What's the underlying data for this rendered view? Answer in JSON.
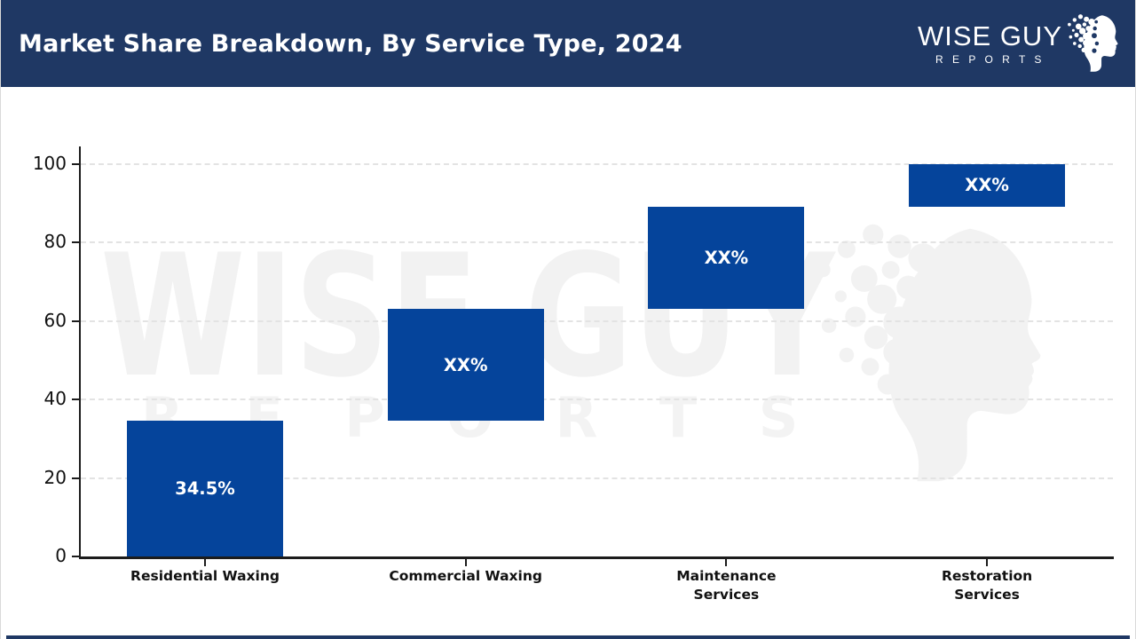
{
  "header": {
    "title": "Market Share Breakdown, By Service Type, 2024",
    "bg_color": "#1F3864",
    "logo": {
      "name": "WISE GUY",
      "tagline": "R E P O R T S"
    }
  },
  "watermark": {
    "name": "WISE GUY",
    "tagline": "R E P O R T S"
  },
  "chart_data": {
    "type": "bar",
    "variant": "waterfall",
    "title": "Market Share Breakdown, By Service Type, 2024",
    "categories": [
      "Residential Waxing",
      "Commercial Waxing",
      "Maintenance Services",
      "Restoration Services"
    ],
    "series": [
      {
        "name": "Market share (%)",
        "segments": [
          {
            "category": "Residential Waxing",
            "start": 0,
            "end": 34.5,
            "label": "34.5%"
          },
          {
            "category": "Commercial Waxing",
            "start": 34.5,
            "end": 63,
            "label": "XX%"
          },
          {
            "category": "Maintenance Services",
            "start": 63,
            "end": 89,
            "label": "XX%"
          },
          {
            "category": "Restoration Services",
            "start": 89,
            "end": 100,
            "label": "XX%"
          }
        ]
      }
    ],
    "xlabel": "",
    "ylabel": "",
    "ylim": [
      0,
      104
    ],
    "yticks": [
      0,
      20,
      40,
      60,
      80,
      100
    ],
    "grid": "horizontal-dashed",
    "legend": "none",
    "colors": {
      "bar": "#05449B",
      "bar_label": "#FFFFFF",
      "grid": "#E3E3E3",
      "axis": "#1C1C1C",
      "tick_label": "#111111",
      "header_bg": "#1F3864"
    }
  }
}
